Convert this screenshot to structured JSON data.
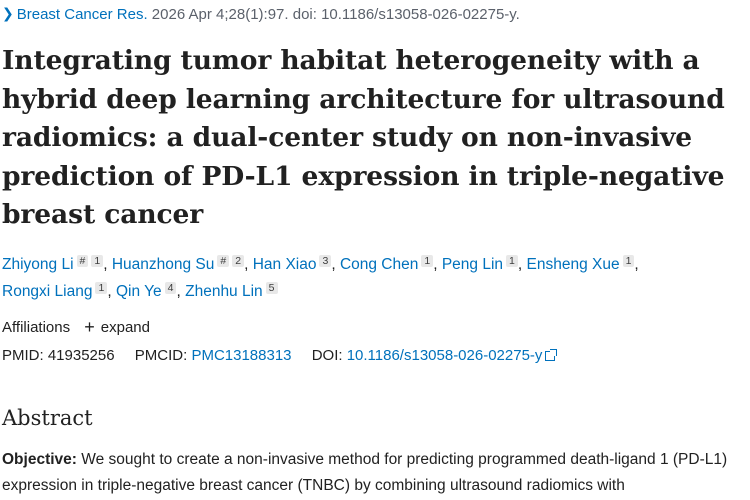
{
  "citation": {
    "journal": "Breast Cancer Res.",
    "details": " 2026 Apr 4;28(1):97. doi: 10.1186/s13058-026-02275-y."
  },
  "title": "Integrating tumor habitat heterogeneity with a hybrid deep learning architecture for ultrasound radiomics: a dual-center study on non-invasive prediction of PD-L1 expression in triple-negative breast cancer",
  "authors": [
    {
      "name": "Zhiyong Li",
      "equal": "#",
      "aff": "1"
    },
    {
      "name": "Huanzhong Su",
      "equal": "#",
      "aff": "2"
    },
    {
      "name": "Han Xiao",
      "equal": "",
      "aff": "3"
    },
    {
      "name": "Cong Chen",
      "equal": "",
      "aff": "1"
    },
    {
      "name": "Peng Lin",
      "equal": "",
      "aff": "1"
    },
    {
      "name": "Ensheng Xue",
      "equal": "",
      "aff": "1"
    },
    {
      "name": "Rongxi Liang",
      "equal": "",
      "aff": "1"
    },
    {
      "name": "Qin Ye",
      "equal": "",
      "aff": "4"
    },
    {
      "name": "Zhenhu Lin",
      "equal": "",
      "aff": "5"
    }
  ],
  "affiliations": {
    "label": "Affiliations",
    "expand_label": "expand"
  },
  "ids": {
    "pmid_label": "PMID:",
    "pmid": "41935256",
    "pmcid_label": "PMCID:",
    "pmcid": "PMC13188313",
    "doi_label": "DOI:",
    "doi": "10.1186/s13058-026-02275-y"
  },
  "abstract": {
    "heading": "Abstract",
    "lead": "Objective:",
    "text": " We sought to create a non-invasive method for predicting programmed death-ligand 1 (PD-L1) expression in triple-negative breast cancer (TNBC) by combining ultrasound radiomics with"
  }
}
